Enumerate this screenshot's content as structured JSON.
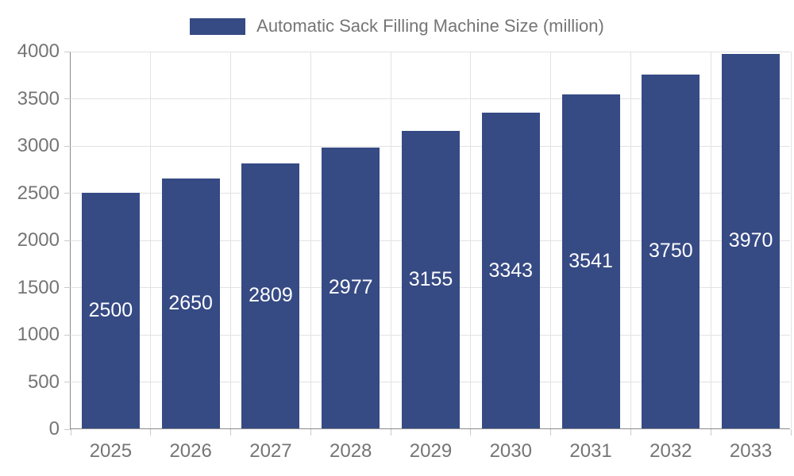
{
  "legend": {
    "label": "Automatic Sack Filling Machine Size (million)"
  },
  "chart_data": {
    "type": "bar",
    "title": "",
    "series_name": "Automatic Sack Filling Machine Size (million)",
    "categories": [
      "2025",
      "2026",
      "2027",
      "2028",
      "2029",
      "2030",
      "2031",
      "2032",
      "2033"
    ],
    "values": [
      2500,
      2650,
      2809,
      2977,
      3155,
      3343,
      3541,
      3750,
      3970
    ],
    "xlabel": "",
    "ylabel": "",
    "ylim": [
      0,
      4000
    ],
    "ytick_step": 500,
    "grid": true,
    "legend_position": "top",
    "colors": {
      "bar": "#364A84",
      "grid": "#e2e2e2",
      "axis": "#8a8a8a",
      "tick": "#c9c9c9",
      "tick_label": "#757575",
      "value_label": "#ffffff",
      "background": "#ffffff"
    }
  }
}
